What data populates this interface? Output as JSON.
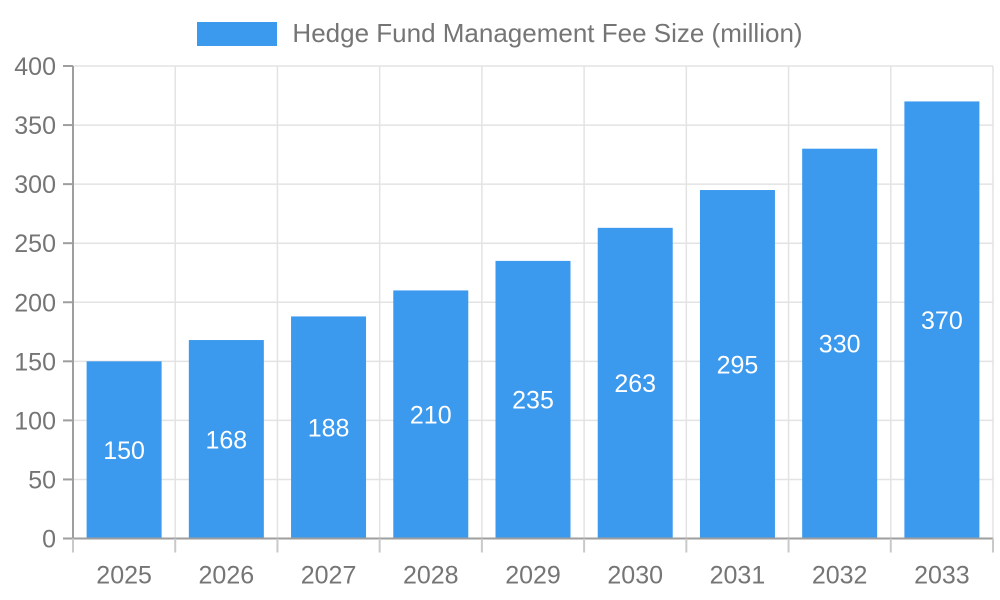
{
  "legend": {
    "series_label": "Hedge Fund Management Fee Size (million)"
  },
  "chart_data": {
    "type": "bar",
    "title": "Hedge Fund Management Fee Size (million)",
    "categories": [
      "2025",
      "2026",
      "2027",
      "2028",
      "2029",
      "2030",
      "2031",
      "2032",
      "2033"
    ],
    "series": [
      {
        "name": "Hedge Fund Management Fee Size (million)",
        "values": [
          150,
          168,
          188,
          210,
          235,
          263,
          295,
          330,
          370
        ]
      }
    ],
    "xlabel": "",
    "ylabel": "",
    "ylim": [
      0,
      400
    ],
    "yticks": [
      0,
      50,
      100,
      150,
      200,
      250,
      300,
      350,
      400
    ],
    "grid": true,
    "legend_position": "top",
    "bar_value_labels_inside": true,
    "colors": {
      "bar": "#3b99ee",
      "axis": "#9e9e9e",
      "tick": "#c9c9c9",
      "grid": "#e3e3e3",
      "text": "#757575",
      "bar_label": "#ffffff",
      "background": "#ffffff"
    }
  }
}
